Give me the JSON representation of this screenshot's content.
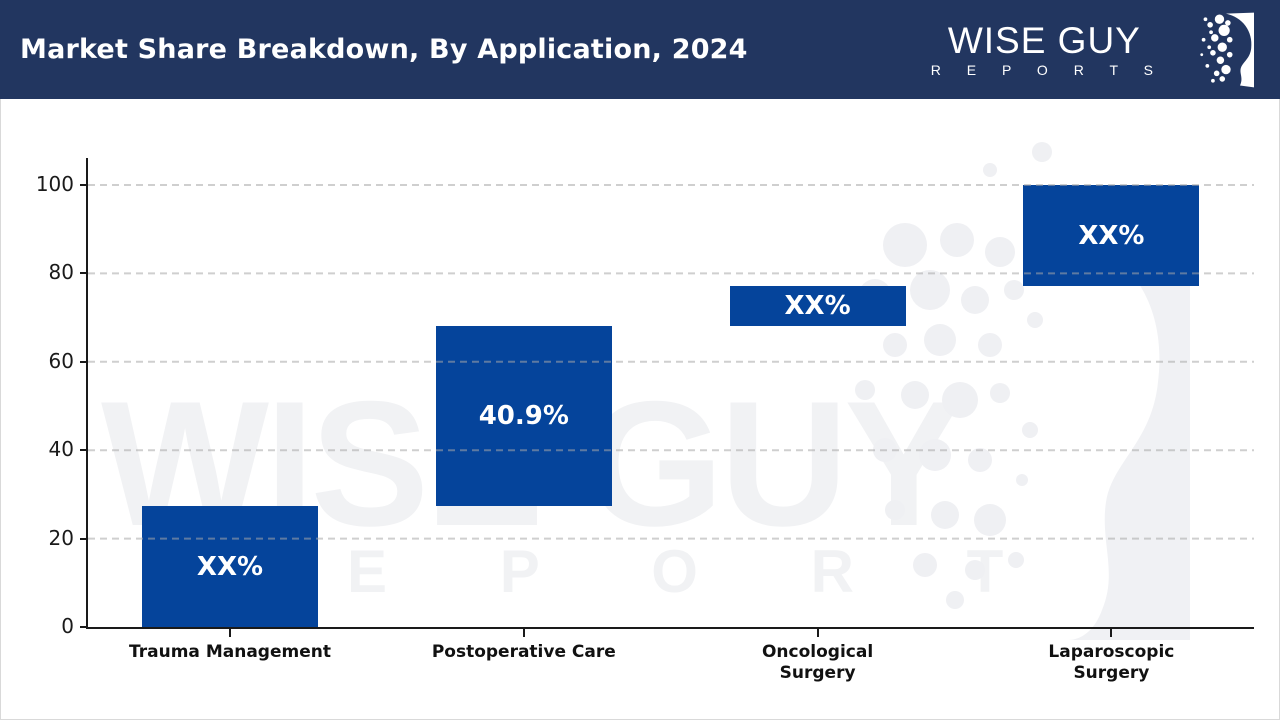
{
  "header": {
    "title": "Market Share Breakdown, By Application, 2024",
    "bg_color": "#223660",
    "logo": {
      "line1": "WISE GUY",
      "line2": "R E P O R T S"
    }
  },
  "watermark": {
    "line1": "WISE GUY",
    "line2": "R E P O R T S"
  },
  "chart_data": {
    "type": "bar",
    "subtype": "waterfall",
    "title": "Market Share Breakdown, By Application, 2024",
    "categories": [
      "Trauma Management",
      "Postoperative Care",
      "Oncological Surgery",
      "Laparoscopic Surgery"
    ],
    "tick_labels": [
      "Trauma Management",
      "Postoperative Care",
      "Oncological\nSurgery",
      "Laparoscopic\nSurgery"
    ],
    "segments": [
      {
        "category": "Trauma Management",
        "start": 0,
        "end": 27.3,
        "label": "XX%"
      },
      {
        "category": "Postoperative Care",
        "start": 27.3,
        "end": 68.2,
        "label": "40.9%"
      },
      {
        "category": "Oncological Surgery",
        "start": 68.2,
        "end": 77.1,
        "label": "XX%"
      },
      {
        "category": "Laparoscopic Surgery",
        "start": 77.1,
        "end": 100,
        "label": "XX%"
      }
    ],
    "xlabel": "",
    "ylabel": "",
    "ylim": [
      0,
      105
    ],
    "yticks": [
      0,
      20,
      40,
      60,
      80,
      100
    ],
    "grid": true,
    "grid_style": "dashed",
    "bar_color": "#05449b",
    "bar_label_color": "#ffffff",
    "legend": "none"
  }
}
